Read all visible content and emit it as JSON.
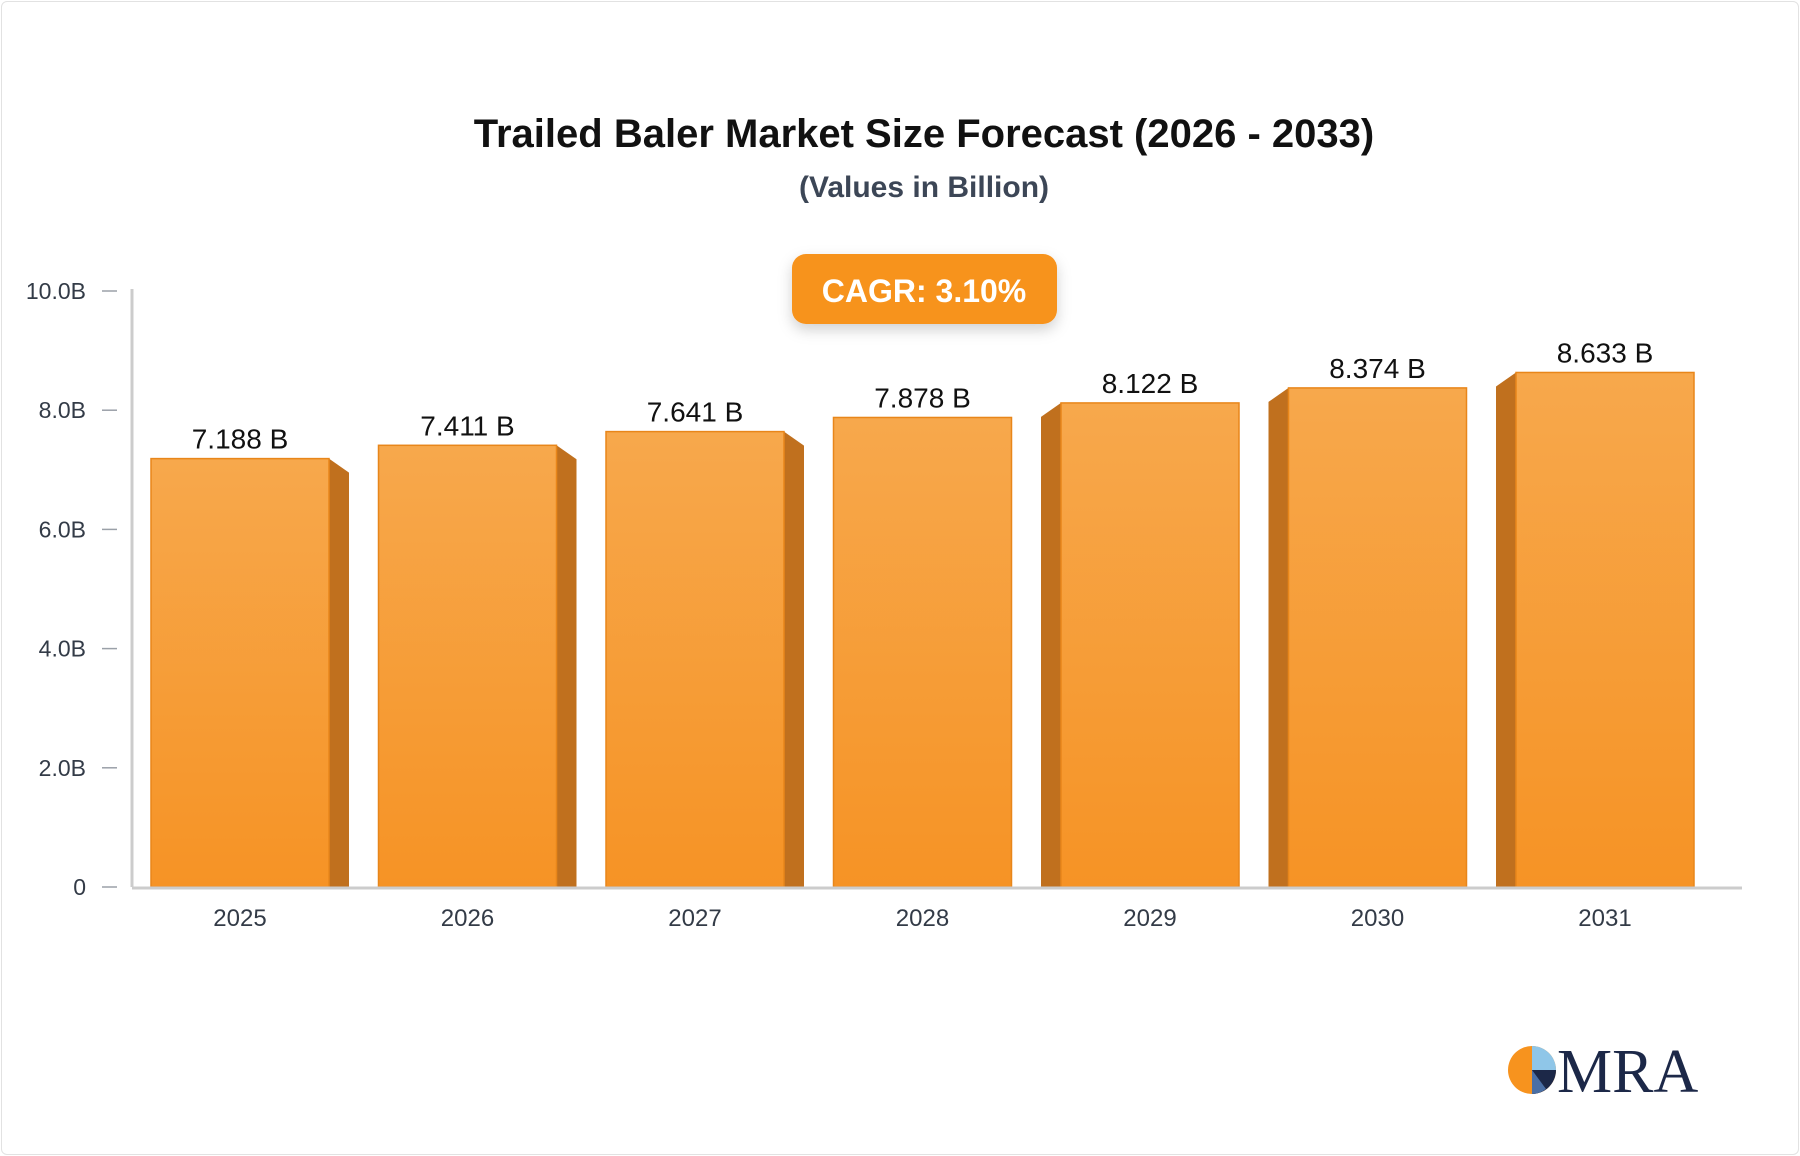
{
  "chart_data": {
    "type": "bar",
    "title": "Trailed Baler Market Size Forecast (2026 - 2033)",
    "subtitle": "(Values in Billion)",
    "badge": "CAGR: 3.10%",
    "categories": [
      "2025",
      "2026",
      "2027",
      "2028",
      "2029",
      "2030",
      "2031"
    ],
    "values": [
      7.188,
      7.411,
      7.641,
      7.878,
      8.122,
      8.374,
      8.633
    ],
    "value_labels": [
      "7.188 B",
      "7.411 B",
      "7.641 B",
      "7.878 B",
      "8.122 B",
      "8.374 B",
      "8.633 B"
    ],
    "yticks": [
      0,
      2,
      4,
      6,
      8,
      10
    ],
    "ytick_labels": [
      "0",
      "2.0B",
      "4.0B",
      "6.0B",
      "8.0B",
      "10.0B"
    ],
    "ylim": [
      0,
      10
    ],
    "xlabel": "",
    "ylabel": "",
    "grid": false,
    "legend": "none",
    "colors": {
      "bar_top": "#f7a84c",
      "bar_bottom": "#f69325",
      "bar_side": "#c0701e",
      "badge": "#f7931e",
      "axis": "#cccccc"
    }
  },
  "logo": {
    "text": "MRA",
    "icon": "pie-logo-icon"
  }
}
